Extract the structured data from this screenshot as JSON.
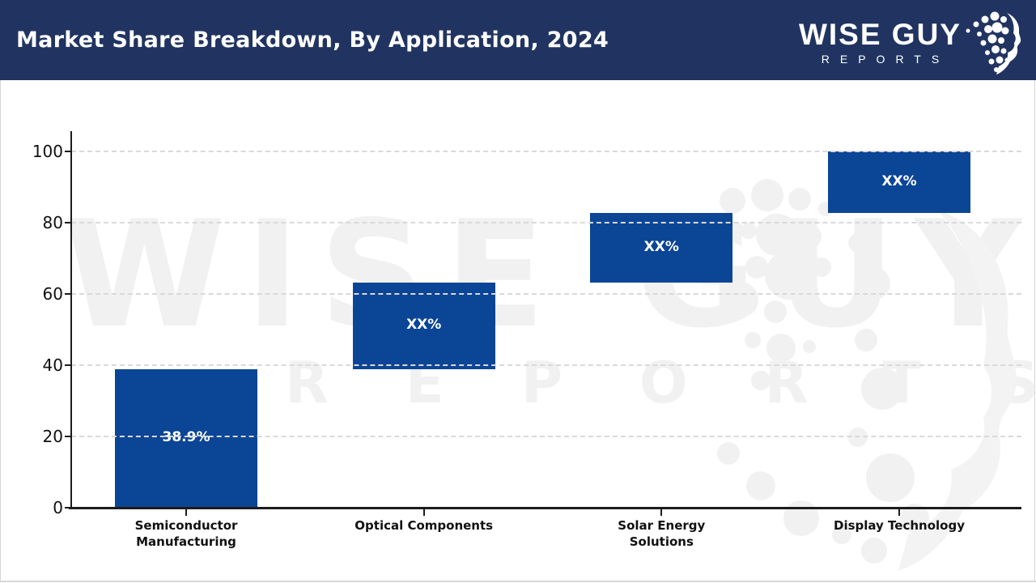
{
  "header": {
    "title": "Market Share Breakdown, By Application, 2024",
    "background": "#213461",
    "logo": {
      "line1": "WISE GUY",
      "line2": "REPORTS"
    }
  },
  "watermark": {
    "line1": "WISE GUY",
    "line2": "REPORTS"
  },
  "chart_data": {
    "type": "bar",
    "subtype": "waterfall",
    "title": "Market Share Breakdown, By Application, 2024",
    "categories": [
      "Semiconductor Manufacturing",
      "Optical Components",
      "Solar Energy Solutions",
      "Display Technology"
    ],
    "category_lines": [
      [
        "Semiconductor",
        "Manufacturing"
      ],
      [
        "Optical Components"
      ],
      [
        "Solar Energy",
        "Solutions"
      ],
      [
        "Display Technology"
      ]
    ],
    "segments": [
      {
        "name": "Semiconductor Manufacturing",
        "start": 0,
        "end": 38.9,
        "value": 38.9,
        "label": "38.9%"
      },
      {
        "name": "Optical Components",
        "start": 38.9,
        "end": 63.2,
        "value": 24.3,
        "label": "XX%"
      },
      {
        "name": "Solar Energy Solutions",
        "start": 63.2,
        "end": 82.7,
        "value": 19.5,
        "label": "XX%"
      },
      {
        "name": "Display Technology",
        "start": 82.7,
        "end": 100,
        "value": 17.3,
        "label": "XX%"
      }
    ],
    "yticks": [
      0,
      20,
      40,
      60,
      80,
      100
    ],
    "ylim": [
      0,
      105.7
    ],
    "xlabel": "",
    "ylabel": "",
    "grid": "horizontal-dashed",
    "grid_above_bars": true,
    "legend": "none",
    "bar_color": "#0b4596",
    "bar_label_color": "#ffffff",
    "axis_color": "#1c1c1c",
    "grid_color": "#d9d9d9"
  },
  "colors": {
    "header_navy": "#213461",
    "bar_blue": "#0b4596",
    "watermark_gray": "#f1f1f2",
    "border_gray": "#d6d6d6"
  }
}
